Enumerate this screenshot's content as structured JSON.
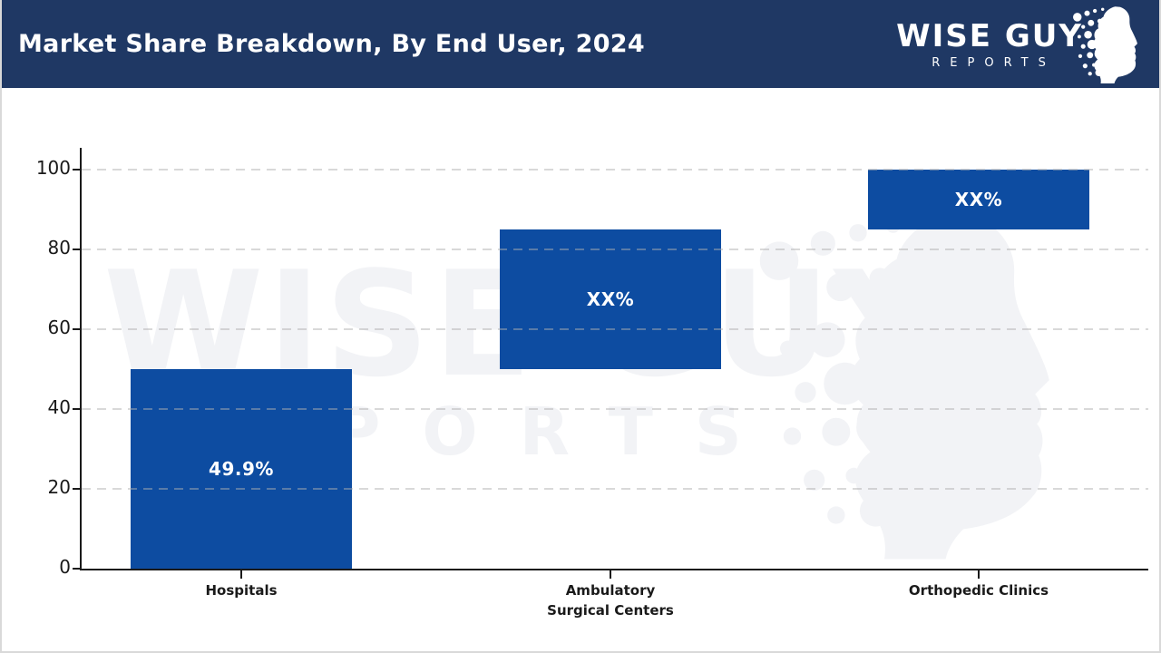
{
  "header": {
    "title": "Market Share Breakdown, By End User, 2024",
    "logo_line1": "WISE GUY",
    "logo_line2": "REPORTS"
  },
  "watermark": {
    "line1": "WISE GUY",
    "line2": "REPORTS"
  },
  "chart_data": {
    "type": "bar",
    "subtype": "waterfall",
    "title": "Market Share Breakdown, By End User, 2024",
    "categories": [
      "Hospitals",
      "Ambulatory\nSurgical Centers",
      "Orthopedic Clinics"
    ],
    "segments": [
      {
        "category": "Hospitals",
        "start": 0,
        "end": 49.9,
        "value_label": "49.9%"
      },
      {
        "category": "Ambulatory\nSurgical Centers",
        "start": 49.9,
        "end": 84.9,
        "value_label": "XX%"
      },
      {
        "category": "Orthopedic Clinics",
        "start": 84.9,
        "end": 100,
        "value_label": "XX%"
      }
    ],
    "xlabel": "",
    "ylabel": "",
    "ylim": [
      0,
      100
    ],
    "yticks": [
      0,
      20,
      40,
      60,
      80,
      100
    ],
    "grid": {
      "axis": "y",
      "style": "dashed"
    },
    "legend": "none",
    "colors": {
      "bar": "#0d4ca1",
      "bar_label": "#ffffff",
      "axis": "#1a1a1a",
      "grid": "#dedede",
      "header_bg": "#1f3864",
      "header_text": "#ffffff",
      "watermark": "#f2f3f6"
    }
  }
}
